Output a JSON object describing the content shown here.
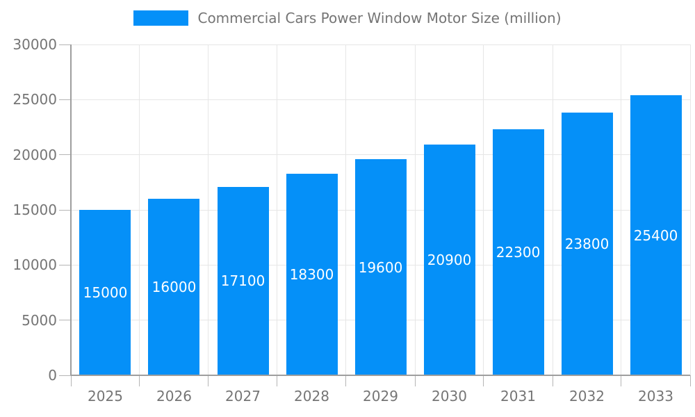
{
  "chart_data": {
    "type": "bar",
    "title": "Commercial Cars Power Window Motor Size (million)",
    "categories": [
      "2025",
      "2026",
      "2027",
      "2028",
      "2029",
      "2030",
      "2031",
      "2032",
      "2033"
    ],
    "values": [
      15000,
      16000,
      17100,
      18300,
      19600,
      20900,
      22300,
      23800,
      25400
    ],
    "xlabel": "",
    "ylabel": "",
    "ylim": [
      0,
      30000
    ],
    "y_ticks": [
      0,
      5000,
      10000,
      15000,
      20000,
      25000,
      30000
    ],
    "grid": true,
    "legend_position": "top-center",
    "colors": {
      "bar": "#0590F8",
      "data_label": "#FFFFFF",
      "axis_text": "#757575",
      "gridline": "#E6E6E6",
      "axis_line": "#9E9E9E",
      "tick": "#B5B5B5",
      "background": "#FFFFFF"
    }
  }
}
